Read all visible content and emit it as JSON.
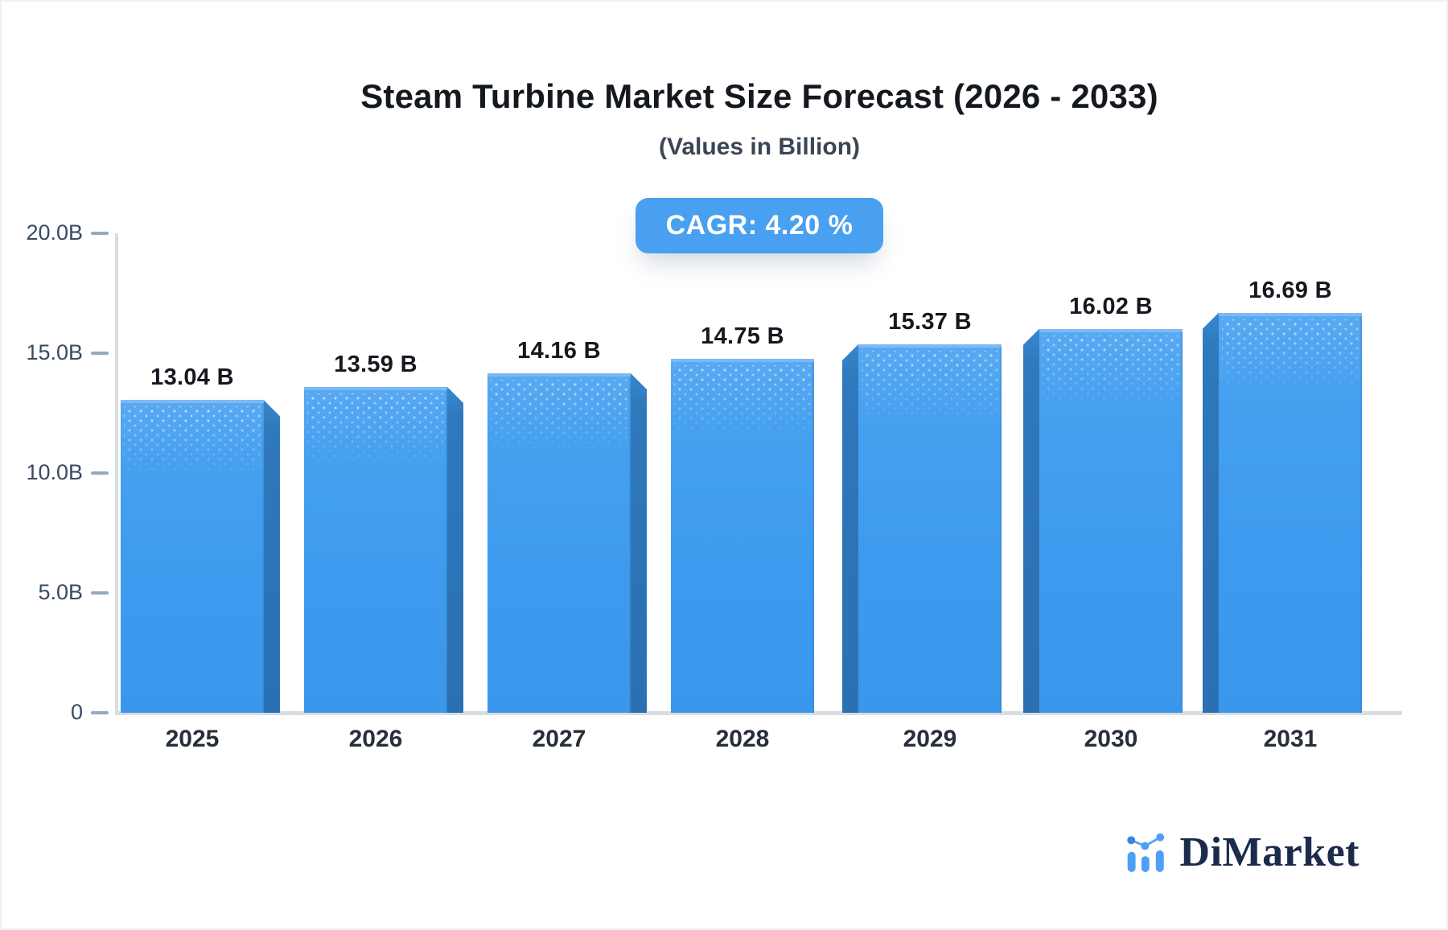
{
  "header": {
    "title": "Steam Turbine Market Size Forecast (2026 - 2033)",
    "subtitle": "(Values in Billion)",
    "cagr_badge": "CAGR: 4.20 %"
  },
  "chart_data": {
    "type": "bar",
    "title": "Steam Turbine Market Size Forecast (2026 - 2033)",
    "subtitle": "(Values in Billion)",
    "categories": [
      "2025",
      "2026",
      "2027",
      "2028",
      "2029",
      "2030",
      "2031"
    ],
    "values": [
      13.04,
      13.59,
      14.16,
      14.75,
      15.37,
      16.02,
      16.69
    ],
    "bar_labels": [
      "13.04 B",
      "13.59 B",
      "14.16 B",
      "14.75 B",
      "15.37 B",
      "16.02 B",
      "16.69 B"
    ],
    "xlabel": "",
    "ylabel": "",
    "ylim": [
      0,
      20
    ],
    "yticks": [
      {
        "value": 0,
        "label": "0"
      },
      {
        "value": 5,
        "label": "5.0B"
      },
      {
        "value": 10,
        "label": "10.0B"
      },
      {
        "value": 15,
        "label": "15.0B"
      },
      {
        "value": 20,
        "label": "20.0B"
      }
    ],
    "grid": false,
    "legend": false,
    "bar_face_color": "#3f9aee",
    "bar_side_color": "#2e76b9",
    "axis_color": "#d9dde2",
    "tick_color": "#93a9c6"
  },
  "badge_color": "#49a0f0",
  "logo": {
    "text": "DiMarket",
    "icon": "mini-bar-chart-icon",
    "text_color": "#1c2b4b",
    "accent_color": "#4da0f5"
  }
}
